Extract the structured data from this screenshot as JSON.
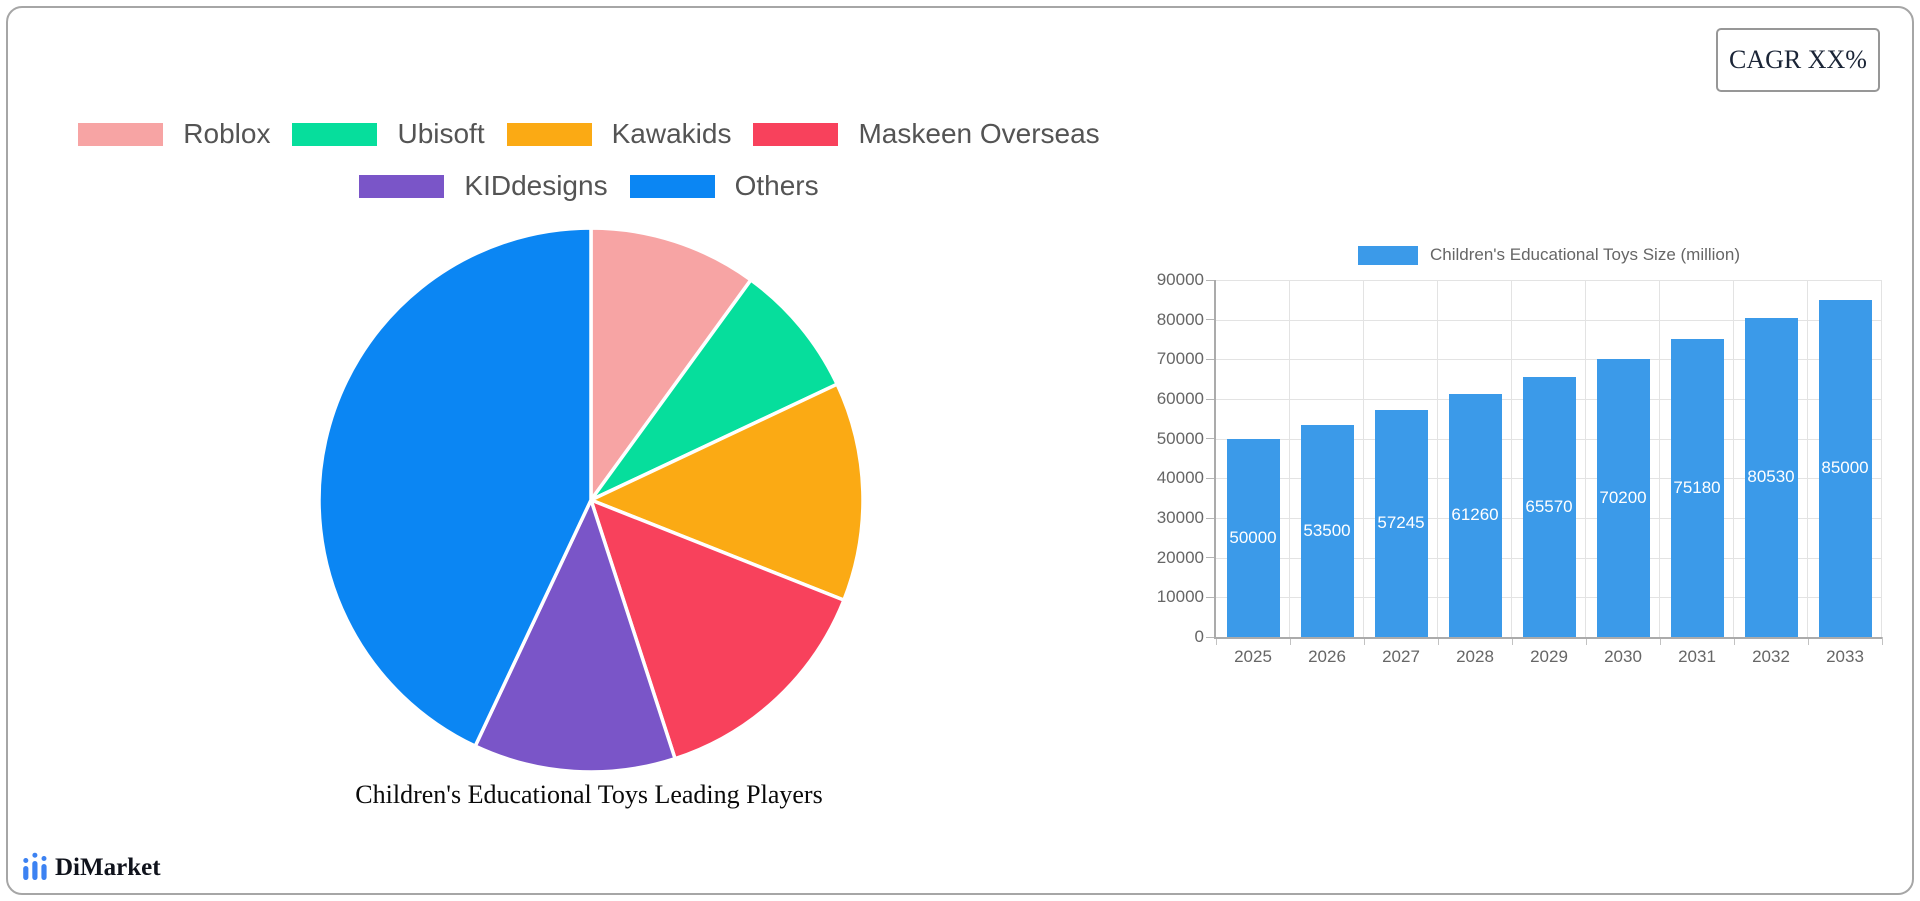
{
  "cagr": {
    "label": "CAGR XX%"
  },
  "footer": {
    "brand": "DiMarket"
  },
  "colors": {
    "bar_blue": "#3B9AE9",
    "grid": "#e3e3e3",
    "axis": "#ababab",
    "axis_text": "#666666",
    "legend_text": "#545454",
    "value_label": "#ffffff"
  },
  "chart_data": [
    {
      "type": "pie",
      "title": "Children's Educational Toys Leading Players",
      "labels": [
        "Roblox",
        "Ubisoft",
        "Kawakids",
        "Maskeen Overseas",
        "KIDdesigns",
        "Others"
      ],
      "values_percent": [
        10,
        8,
        13,
        14,
        12,
        43
      ],
      "colors": [
        "#F7A4A4",
        "#06DE9C",
        "#FBAA14",
        "#F8415C",
        "#7A55C8",
        "#0B86F3"
      ],
      "start_angle_deg": 0,
      "separator_color": "#ffffff",
      "legend_rows": [
        4,
        2
      ],
      "legend_position": "top"
    },
    {
      "type": "bar",
      "legend_label": "Children's Educational Toys Size (million)",
      "categories": [
        "2025",
        "2026",
        "2027",
        "2028",
        "2029",
        "2030",
        "2031",
        "2032",
        "2033"
      ],
      "values": [
        50000,
        53500,
        57245,
        61260,
        65570,
        70200,
        75180,
        80530,
        85000
      ],
      "ylim": [
        0,
        90000
      ],
      "ytick_step": 10000,
      "ytick_labels": [
        "0",
        "10000",
        "20000",
        "30000",
        "40000",
        "50000",
        "60000",
        "70000",
        "80000",
        "90000"
      ],
      "bar_color": "#3B9AE9",
      "grid": true,
      "legend_position": "top",
      "value_labels_inside": true
    }
  ]
}
